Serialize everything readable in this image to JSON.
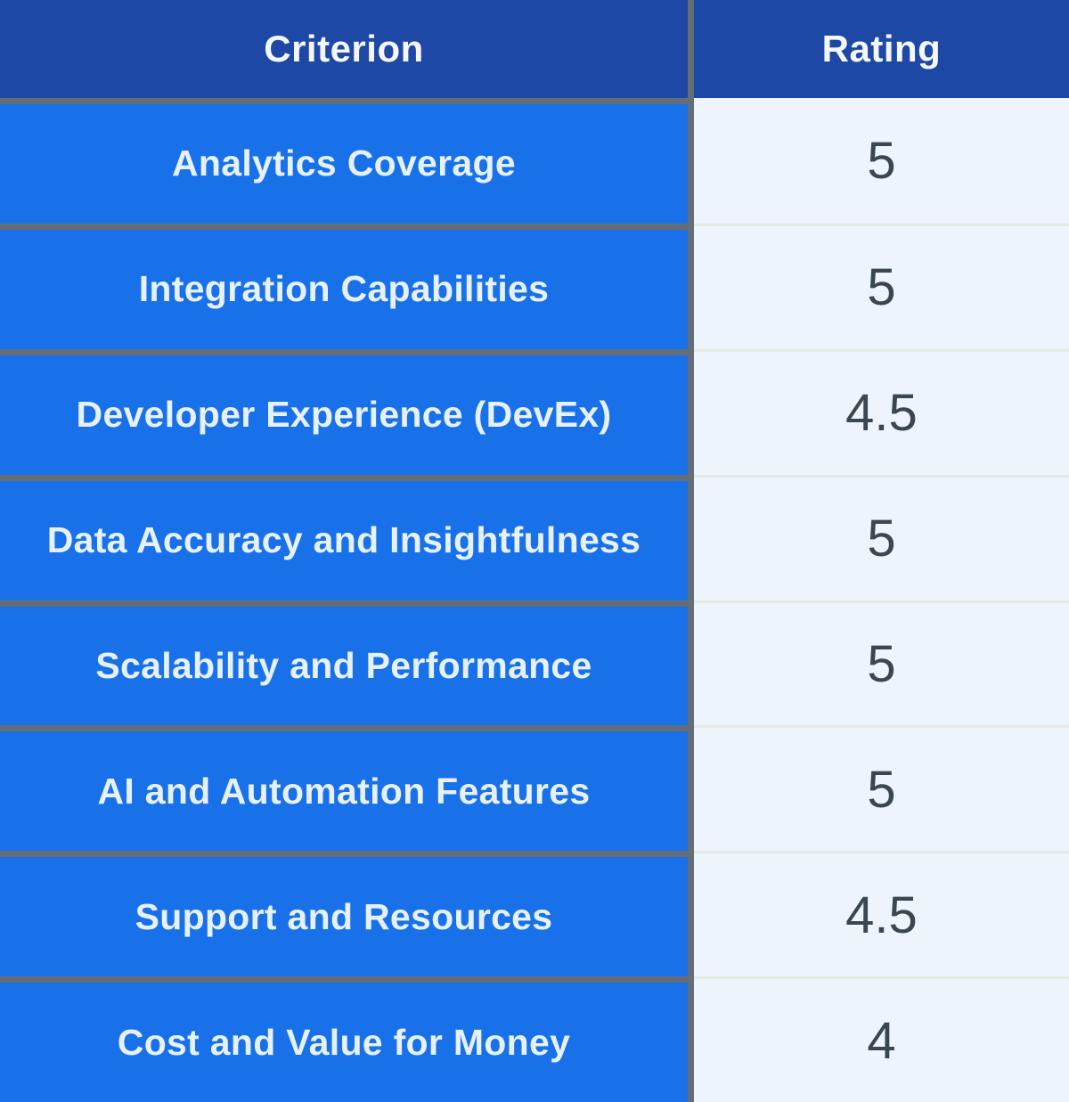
{
  "colors": {
    "header_bg": "#1e48a5",
    "criterion_bg": "#1971ea",
    "rating_bg": "#edf4fb",
    "divider": "#656d78",
    "header_text": "#f4f8fd",
    "criterion_text": "#e6f1fd",
    "rating_text": "#3b4750"
  },
  "table": {
    "columns": [
      "Criterion",
      "Rating"
    ],
    "rows": [
      {
        "criterion": "Analytics Coverage",
        "rating": "5"
      },
      {
        "criterion": "Integration Capabilities",
        "rating": "5"
      },
      {
        "criterion": "Developer Experience (DevEx)",
        "rating": "4.5"
      },
      {
        "criterion": "Data Accuracy and Insightfulness",
        "rating": "5"
      },
      {
        "criterion": "Scalability and Performance",
        "rating": "5"
      },
      {
        "criterion": "AI and Automation Features",
        "rating": "5"
      },
      {
        "criterion": "Support and Resources",
        "rating": "4.5"
      },
      {
        "criterion": "Cost and Value for Money",
        "rating": "4"
      }
    ]
  },
  "chart_data": {
    "type": "table",
    "title": "",
    "columns": [
      "Criterion",
      "Rating"
    ],
    "categories": [
      "Analytics Coverage",
      "Integration Capabilities",
      "Developer Experience (DevEx)",
      "Data Accuracy and Insightfulness",
      "Scalability and Performance",
      "AI and Automation Features",
      "Support and Resources",
      "Cost and Value for Money"
    ],
    "values": [
      5,
      5,
      4.5,
      5,
      5,
      5,
      4.5,
      4
    ],
    "value_range": [
      0,
      5
    ],
    "layout": "two-column table, header row on top, no outer border"
  }
}
